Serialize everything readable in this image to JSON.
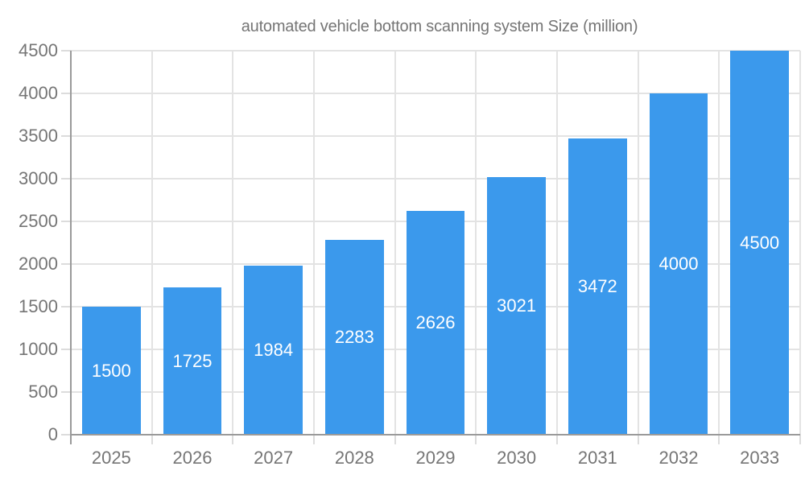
{
  "legend": {
    "label": "automated vehicle bottom scanning system Size (million)",
    "swatch_color": "#3b99ec"
  },
  "chart_data": {
    "type": "bar",
    "title": "",
    "legend_entries": [
      "automated vehicle bottom scanning system Size (million)"
    ],
    "legend_position": "top",
    "categories": [
      "2025",
      "2026",
      "2027",
      "2028",
      "2029",
      "2030",
      "2031",
      "2032",
      "2033"
    ],
    "values": [
      1500,
      1725,
      1984,
      2283,
      2626,
      3021,
      3472,
      4000,
      4500
    ],
    "xlabel": "",
    "ylabel": "",
    "ylim": [
      0,
      4500
    ],
    "ytick_step": 500,
    "grid": true,
    "bar_color": "#3b99ec",
    "bar_label_color": "#ffffff",
    "axis_text_color": "#757575",
    "grid_color": "#e3e3e3",
    "axis_line_color": "#9a9a9a"
  }
}
